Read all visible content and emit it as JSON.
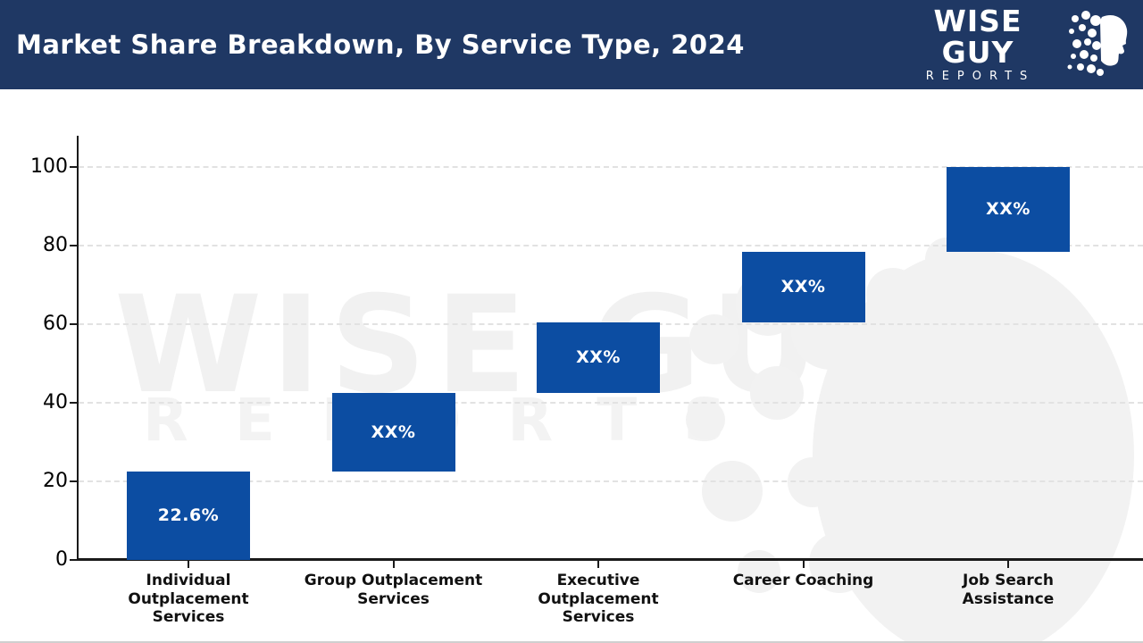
{
  "header": {
    "title": "Market Share Breakdown, By Service Type, 2024",
    "logo": {
      "line1": "WISE GUY",
      "line2": "REPORTS"
    }
  },
  "watermark": {
    "line1": "WISE GUY",
    "line2": "REPORTS"
  },
  "colors": {
    "header_bg": "#1f3864",
    "bar_blue": "#0c4da2",
    "grid_gray": "#e2e2e2",
    "watermark_gray": "#f1f1f1"
  },
  "chart_data": {
    "type": "bar",
    "subtype": "waterfall",
    "title": "Market Share Breakdown, By Service Type, 2024",
    "xlabel": "",
    "ylabel": "",
    "ylim": [
      0,
      107
    ],
    "grid": true,
    "yticks": [
      0,
      20,
      40,
      60,
      80,
      100
    ],
    "categories": [
      "Individual Outplacement Services",
      "Group Outplacement Services",
      "Executive Outplacement Services",
      "Career Coaching",
      "Job Search Assistance"
    ],
    "categories_display": [
      "Individual\nOutplacement\nServices",
      "Group Outplacement\nServices",
      "Executive\nOutplacement\nServices",
      "Career Coaching",
      "Job Search\nAssistance"
    ],
    "segments": [
      {
        "category": "Individual Outplacement Services",
        "start": 0,
        "end": 22.6,
        "value": 22.6,
        "label": "22.6%"
      },
      {
        "category": "Group Outplacement Services",
        "start": 22.6,
        "end": 42.5,
        "value": 19.9,
        "label": "XX%"
      },
      {
        "category": "Executive Outplacement Services",
        "start": 42.5,
        "end": 60.5,
        "value": 18.0,
        "label": "XX%"
      },
      {
        "category": "Career Coaching",
        "start": 60.5,
        "end": 78.5,
        "value": 18.0,
        "label": "XX%"
      },
      {
        "category": "Job Search Assistance",
        "start": 78.5,
        "end": 100,
        "value": 21.5,
        "label": "XX%"
      }
    ]
  }
}
